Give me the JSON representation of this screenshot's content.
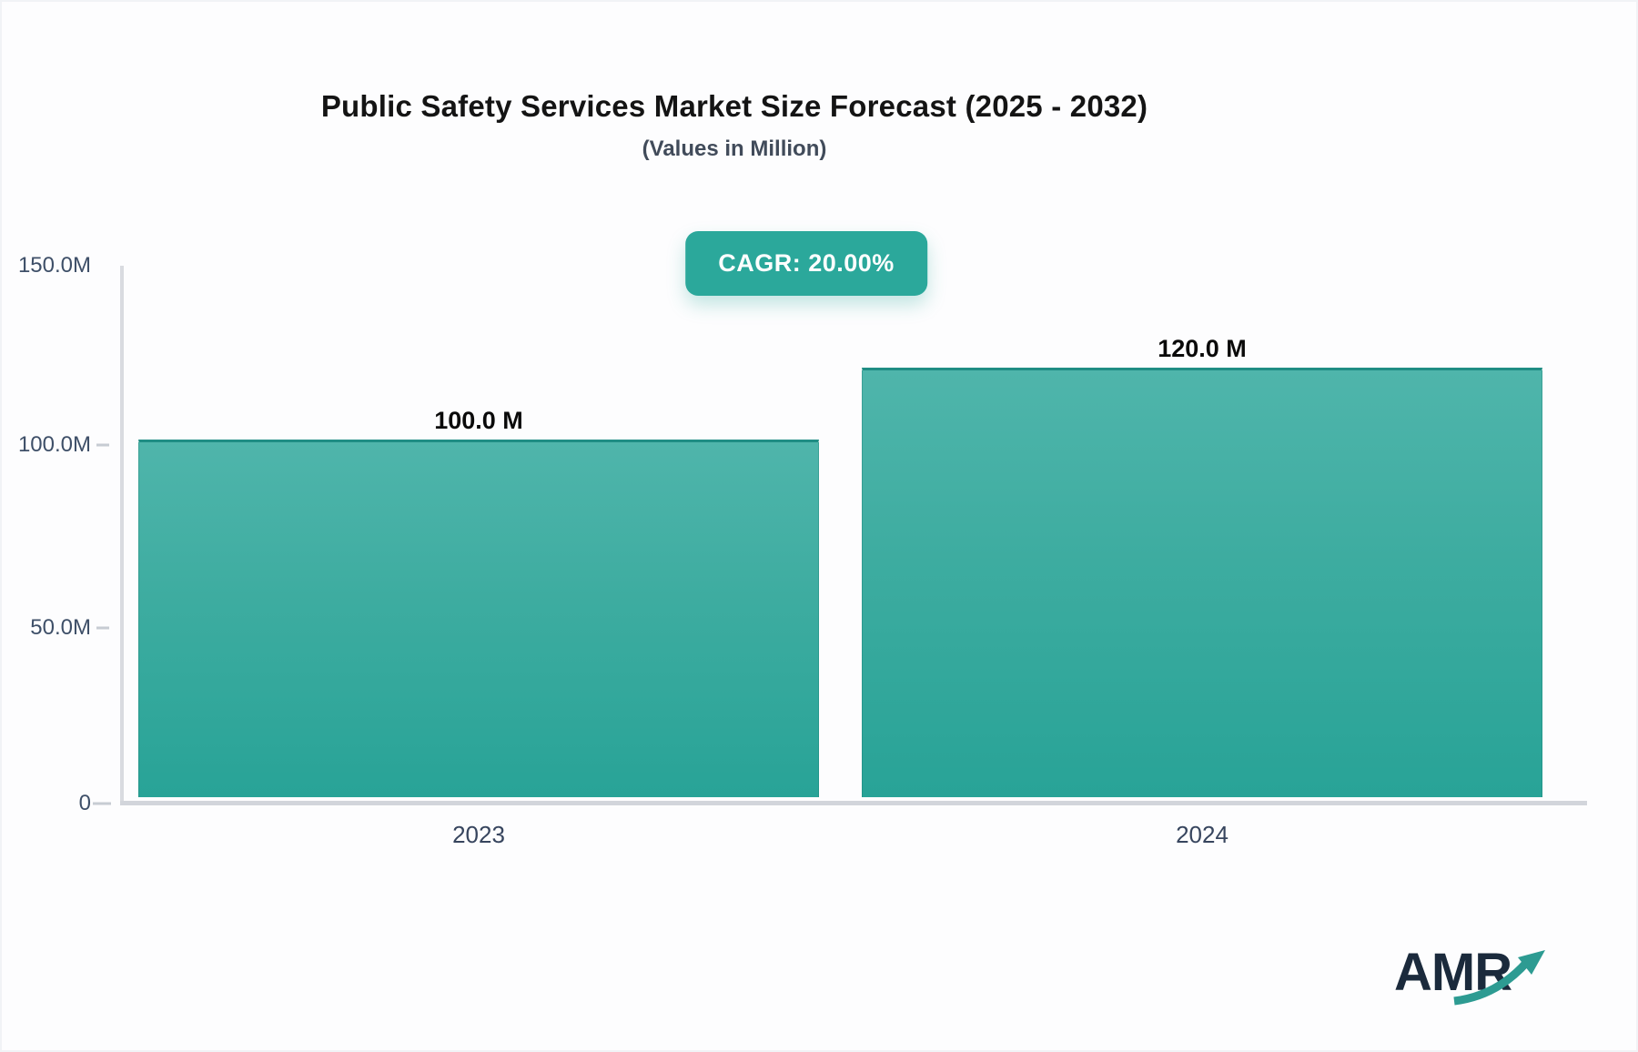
{
  "chart_data": {
    "type": "bar",
    "title": "Public Safety Services Market Size Forecast (2025 - 2032)",
    "subtitle": "(Values in Million)",
    "cagr_label": "CAGR: 20.00%",
    "cagr_percent": 20.0,
    "categories": [
      "2023",
      "2024"
    ],
    "values": [
      100.0,
      120.0
    ],
    "bar_labels": [
      "100.0 M",
      "120.0 M"
    ],
    "unit": "Million",
    "xlabel": "",
    "ylabel": "",
    "ylim": [
      0,
      150
    ],
    "y_ticks": [
      "150.0M",
      "100.0M",
      "50.0M",
      "0"
    ],
    "y_tick_values": [
      150,
      100,
      50,
      0
    ],
    "grid": false,
    "legend": "none",
    "colors": {
      "bar_fill_top": "#4fb5ab",
      "bar_fill_bottom": "#28a397",
      "bar_border_top": "#1f8d84",
      "badge_background": "#2ba89b",
      "badge_text": "#ffffff",
      "axis_line": "#d5d8dd",
      "tick_label": "#3e4f68",
      "title_text": "#141414"
    }
  },
  "branding": {
    "logo_text": "AMR",
    "logo_text_color": "#1b2a3c",
    "logo_arrow_color": "#2d9b92"
  }
}
